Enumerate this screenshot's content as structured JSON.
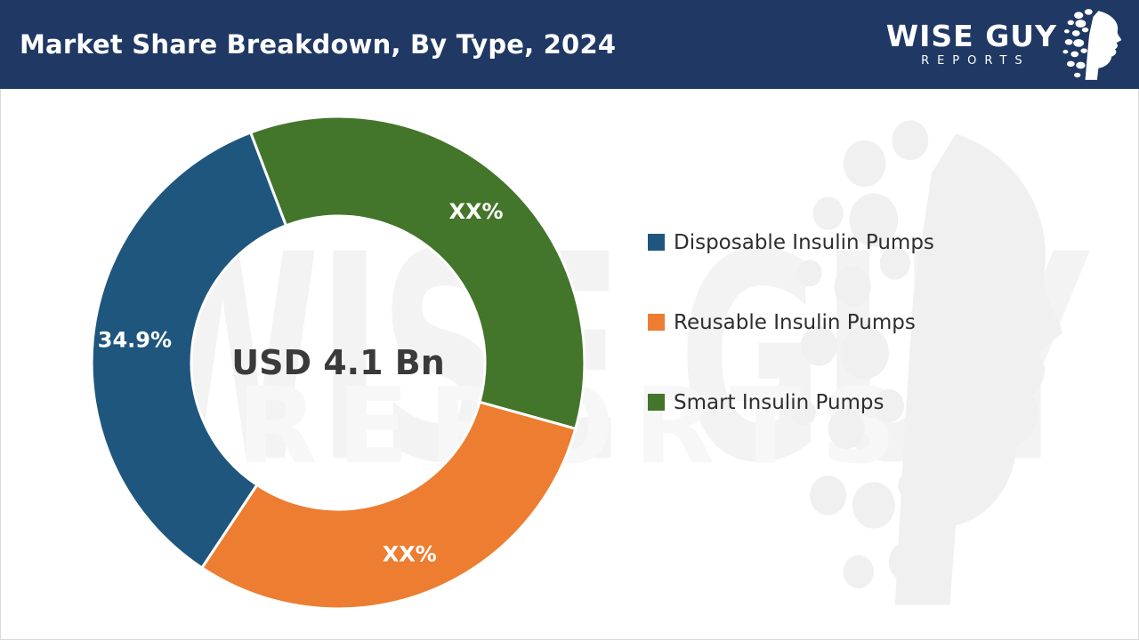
{
  "header": {
    "title": "Market Share Breakdown, By Type, 2024",
    "logo": {
      "line1": "WISE GUY",
      "line2": "REPORTS"
    }
  },
  "watermark": {
    "line1": "WISE GUY",
    "line2": "REPORTS"
  },
  "colors": {
    "header_navy": "#1F3864",
    "blue": "#1F567E",
    "orange": "#ED7D31",
    "green": "#43752A",
    "center_text": "#3A3A3A",
    "watermark_gray": "#F3F3F3"
  },
  "chart_data": {
    "type": "pie",
    "subtype": "donut",
    "title": "Market Share Breakdown, By Type, 2024",
    "center_label": "USD 4.1 Bn",
    "start_angle_deg": -20.8,
    "direction": "clockwise",
    "legend_position": "right",
    "draw_order": [
      "Smart Insulin Pumps",
      "Reusable Insulin Pumps",
      "Disposable Insulin Pumps"
    ],
    "segments": [
      {
        "label": "Disposable Insulin Pumps",
        "value_pct": 34.9,
        "display": "34.9%",
        "color": "#1F567E"
      },
      {
        "label": "Reusable Insulin Pumps",
        "value_pct": 30.0,
        "display": "XX%",
        "color": "#ED7D31"
      },
      {
        "label": "Smart Insulin Pumps",
        "value_pct": 35.1,
        "display": "XX%",
        "color": "#43752A"
      }
    ]
  }
}
